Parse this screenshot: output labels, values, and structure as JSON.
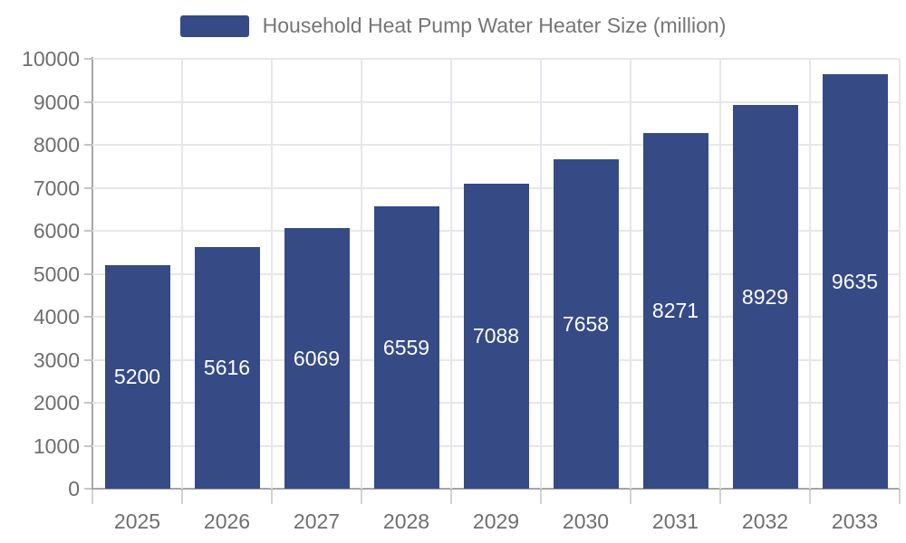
{
  "legend": {
    "label": "Household Heat Pump Water Heater Size (million)"
  },
  "chart_data": {
    "type": "bar",
    "title": "Household Heat Pump Water Heater Size (million)",
    "categories": [
      "2025",
      "2026",
      "2027",
      "2028",
      "2029",
      "2030",
      "2031",
      "2032",
      "2033"
    ],
    "values": [
      5200,
      5616,
      6069,
      6559,
      7088,
      7658,
      8271,
      8929,
      9635
    ],
    "value_labels": [
      "5200",
      "5616",
      "6069",
      "6559",
      "7088",
      "7658",
      "8271",
      "8929",
      "9635"
    ],
    "y_tick_labels": [
      "0",
      "1000",
      "2000",
      "3000",
      "4000",
      "5000",
      "6000",
      "7000",
      "8000",
      "9000",
      "10000"
    ],
    "ylim": [
      0,
      10000
    ],
    "xlabel": "",
    "ylabel": "",
    "grid": true,
    "legend_position": "top",
    "colors": {
      "bar": "#364a85",
      "value_label": "#ffffff",
      "axis_label": "#6e6e6e",
      "legend_text": "#757575"
    }
  }
}
